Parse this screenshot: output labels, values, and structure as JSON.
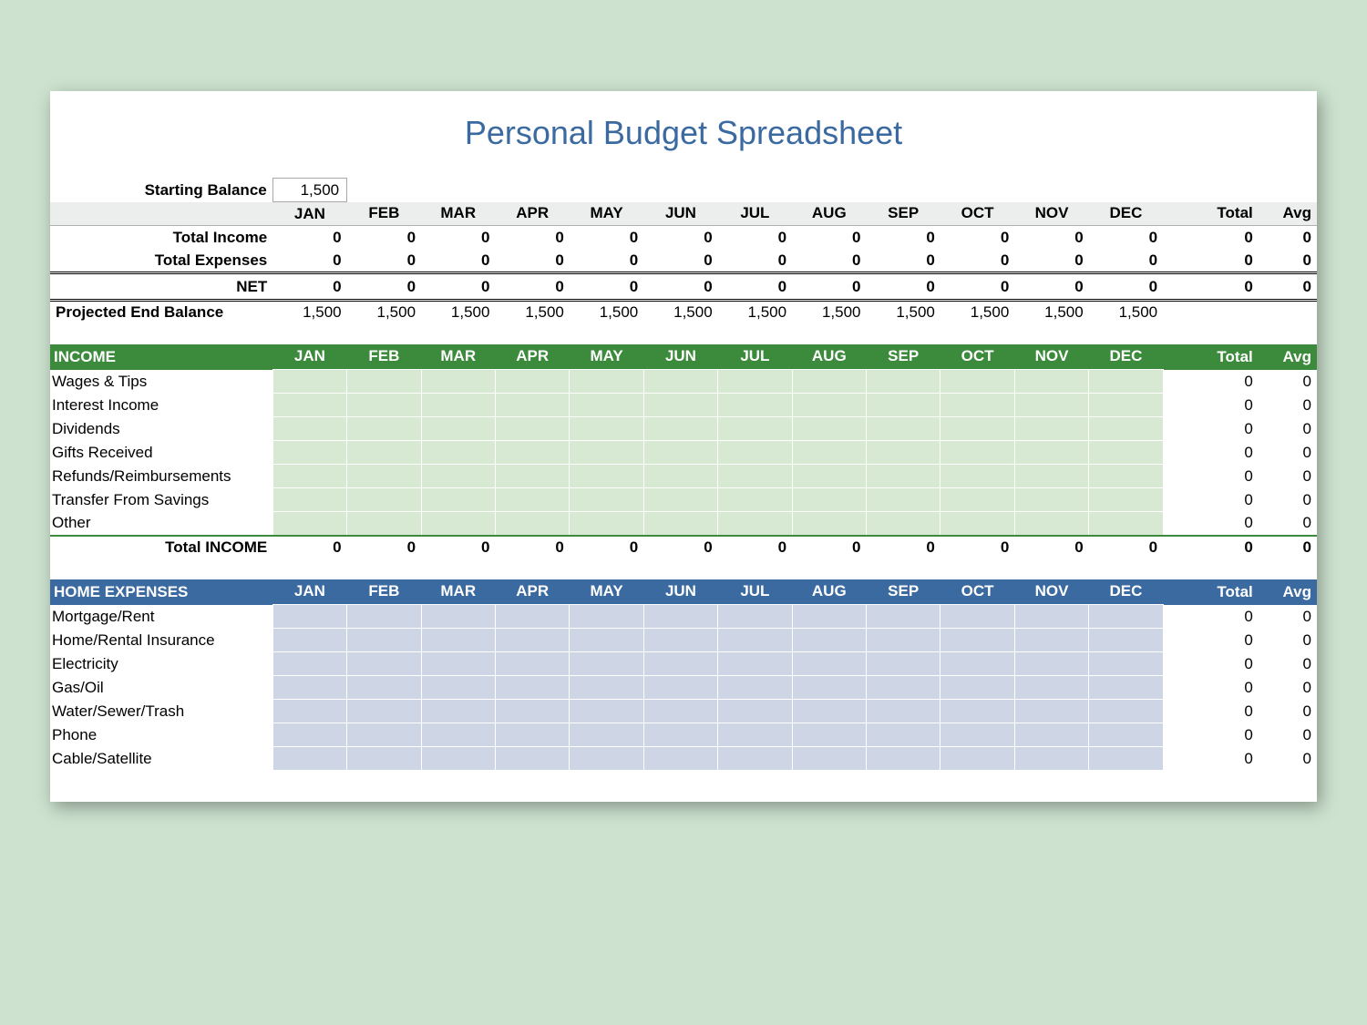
{
  "title": "Personal Budget Spreadsheet",
  "months": [
    "JAN",
    "FEB",
    "MAR",
    "APR",
    "MAY",
    "JUN",
    "JUL",
    "AUG",
    "SEP",
    "OCT",
    "NOV",
    "DEC"
  ],
  "summary": {
    "starting_label": "Starting Balance",
    "starting_value": "1,500",
    "total_col": "Total",
    "avg_col": "Avg",
    "rows": [
      {
        "label": "Total Income",
        "vals": [
          "0",
          "0",
          "0",
          "0",
          "0",
          "0",
          "0",
          "0",
          "0",
          "0",
          "0",
          "0"
        ],
        "total": "0",
        "avg": "0"
      },
      {
        "label": "Total Expenses",
        "vals": [
          "0",
          "0",
          "0",
          "0",
          "0",
          "0",
          "0",
          "0",
          "0",
          "0",
          "0",
          "0"
        ],
        "total": "0",
        "avg": "0"
      }
    ],
    "net": {
      "label": "NET",
      "vals": [
        "0",
        "0",
        "0",
        "0",
        "0",
        "0",
        "0",
        "0",
        "0",
        "0",
        "0",
        "0"
      ],
      "total": "0",
      "avg": "0"
    },
    "proj": {
      "label": "Projected End Balance",
      "vals": [
        "1,500",
        "1,500",
        "1,500",
        "1,500",
        "1,500",
        "1,500",
        "1,500",
        "1,500",
        "1,500",
        "1,500",
        "1,500",
        "1,500"
      ]
    }
  },
  "income": {
    "header": "INCOME",
    "header_color": "#3c8a3c",
    "cell_color": "#d8e9d3",
    "items": [
      "Wages & Tips",
      "Interest Income",
      "Dividends",
      "Gifts Received",
      "Refunds/Reimbursements",
      "Transfer From Savings",
      "Other"
    ],
    "total_label": "Total INCOME"
  },
  "home": {
    "header": "HOME EXPENSES",
    "header_color": "#3b6aa0",
    "cell_color": "#ced6e6",
    "items": [
      "Mortgage/Rent",
      "Home/Rental Insurance",
      "Electricity",
      "Gas/Oil",
      "Water/Sewer/Trash",
      "Phone",
      "Cable/Satellite"
    ]
  },
  "colors": {
    "page_bg": "#cde2cf",
    "sheet_bg": "#ffffff",
    "title": "#3b6aa0"
  }
}
